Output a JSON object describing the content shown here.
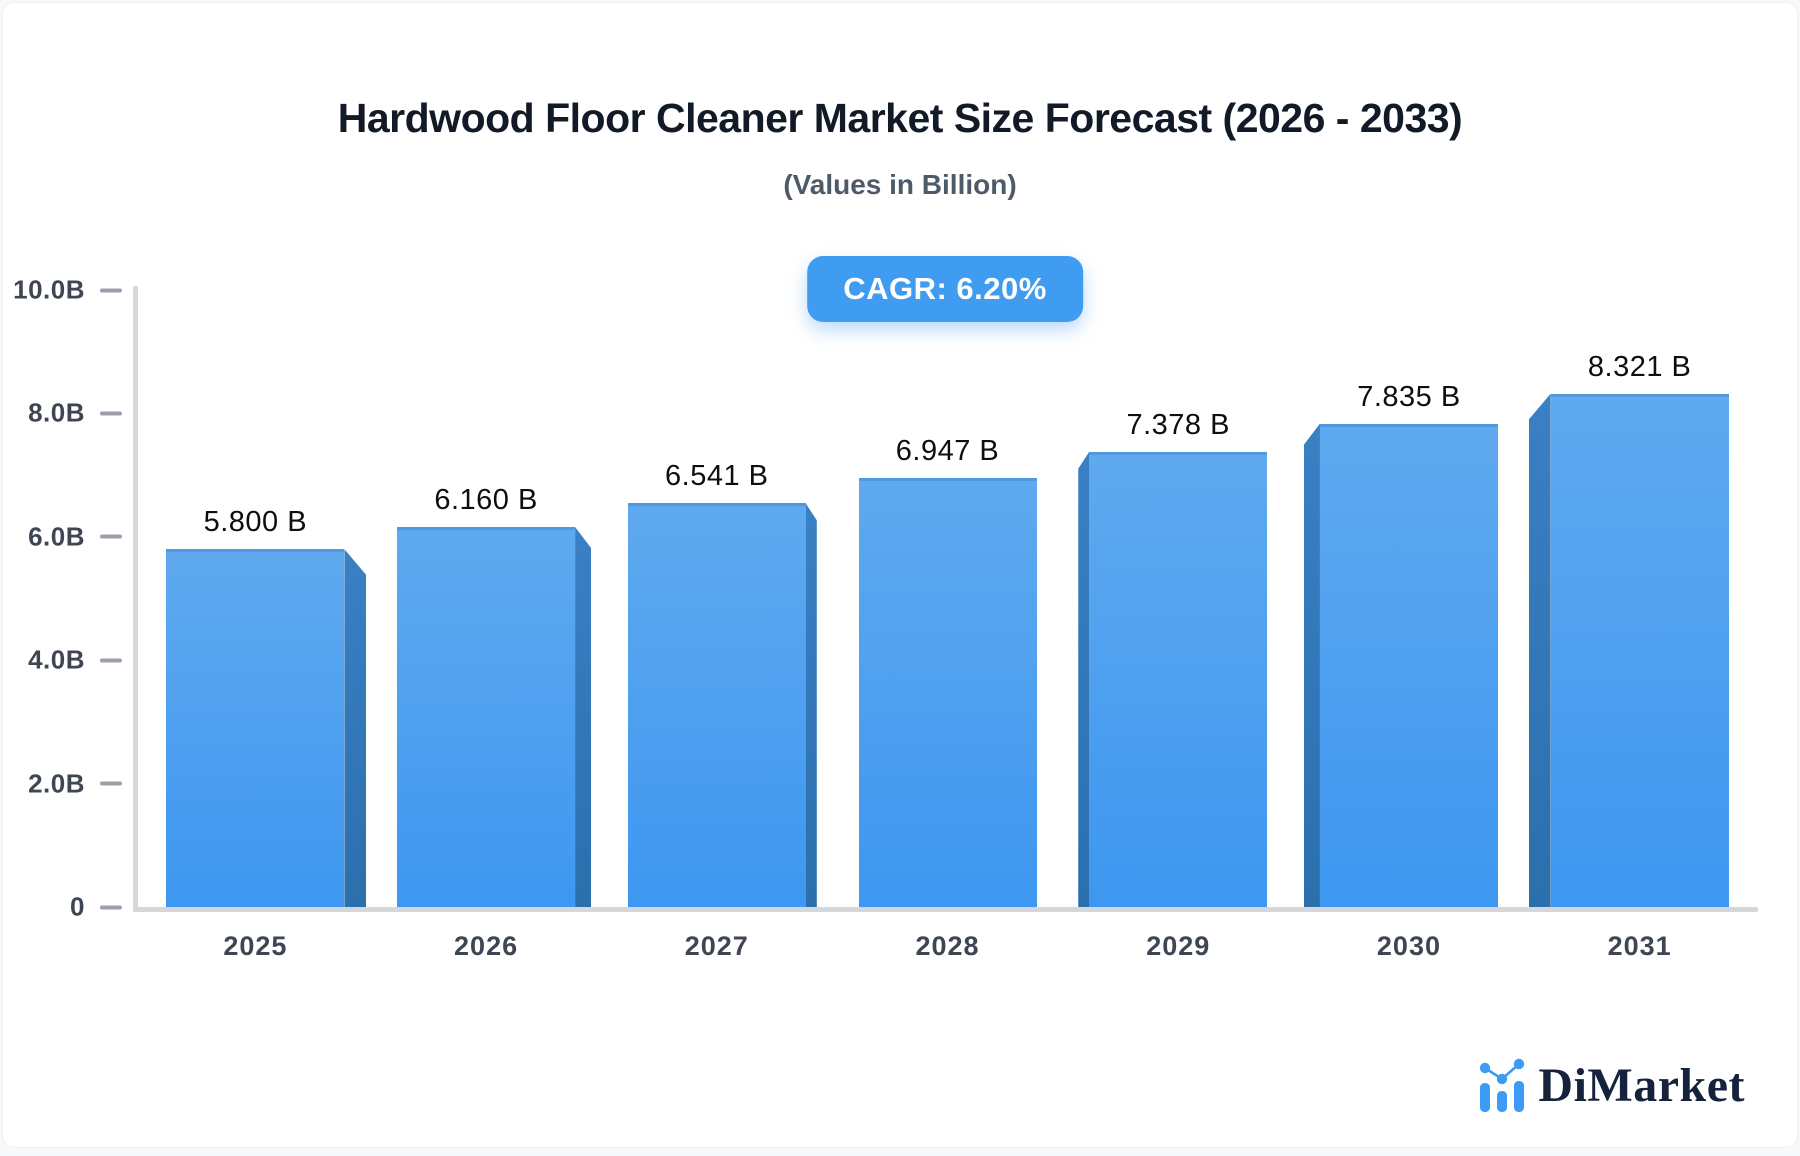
{
  "header": {
    "title": "Hardwood Floor Cleaner Market Size Forecast (2026 - 2033)",
    "subtitle": "(Values in Billion)",
    "cagr_label": "CAGR: 6.20%"
  },
  "chart_data": {
    "type": "bar",
    "title": "Hardwood Floor Cleaner Market Size Forecast (2026 - 2033)",
    "subtitle": "(Values in Billion)",
    "cagr": "6.20%",
    "categories": [
      "2025",
      "2026",
      "2027",
      "2028",
      "2029",
      "2030",
      "2031"
    ],
    "values": [
      5.8,
      6.16,
      6.541,
      6.947,
      7.378,
      7.835,
      8.321
    ],
    "value_labels": [
      "5.800 B",
      "6.160 B",
      "6.541 B",
      "6.947 B",
      "7.378 B",
      "7.835 B",
      "8.321 B"
    ],
    "xlabel": "",
    "ylabel": "",
    "ylim": [
      0,
      10
    ],
    "y_ticks": [
      {
        "label": "0",
        "value": 0
      },
      {
        "label": "2.0B",
        "value": 2
      },
      {
        "label": "4.0B",
        "value": 4
      },
      {
        "label": "6.0B",
        "value": 6
      },
      {
        "label": "8.0B",
        "value": 8
      },
      {
        "label": "10.0B",
        "value": 10
      }
    ],
    "grid": false,
    "legend": false,
    "bar_style": "3d-bevel"
  },
  "branding": {
    "logo_text": "DiMarket",
    "logo_icon": "mini-bar-chart-icon"
  },
  "colors": {
    "page_bg": "#f7f8fa",
    "badge_bg": "#3f9cf1",
    "bar_top": "#5fa9ef",
    "bar_bottom": "#3e97f0",
    "bar_edge": "#4f9add",
    "bar_side_top": "#3a80c4",
    "bar_side_bottom": "#2b6fad",
    "axis": "#d6d7da",
    "tick_dash": "#9aa1ac",
    "axis_label": "#3e4654",
    "value_label": "#0d0e10",
    "title": "#111a26",
    "subtitle": "#4d5a68",
    "logo_text": "#15223b",
    "logo_blue": "#3d9bf5"
  }
}
